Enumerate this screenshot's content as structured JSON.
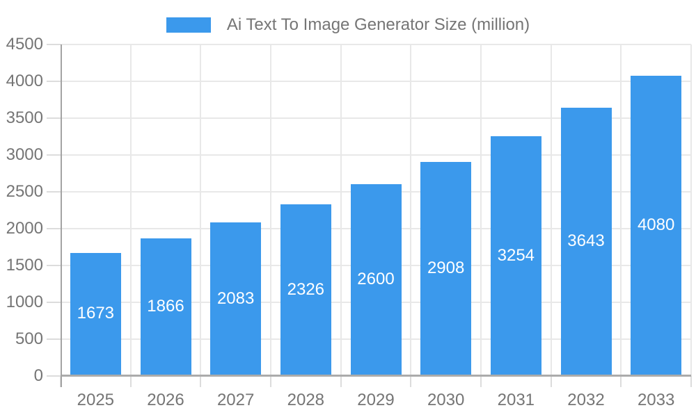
{
  "legend": {
    "label": "Ai Text To Image Generator Size (million)"
  },
  "chart_data": {
    "type": "bar",
    "title": "Ai Text To Image Generator Size (million)",
    "categories": [
      "2025",
      "2026",
      "2027",
      "2028",
      "2029",
      "2030",
      "2031",
      "2032",
      "2033"
    ],
    "series": [
      {
        "name": "Ai Text To Image Generator Size (million)",
        "values": [
          1673,
          1866,
          2083,
          2326,
          2600,
          2908,
          3254,
          3643,
          4080
        ]
      }
    ],
    "value_labels": {
      "position": "inside-center",
      "color": "#FFFFFF"
    },
    "xlabel": "",
    "ylabel": "",
    "ylim": [
      0,
      4500
    ],
    "yticks": [
      0,
      500,
      1000,
      1500,
      2000,
      2500,
      3000,
      3500,
      4000,
      4500
    ],
    "grid": true,
    "legend_position": "top"
  },
  "colors": {
    "bar": "#3B99EC",
    "text": "#757575",
    "value_label": "#FFFFFF",
    "grid": "#E8E8E8",
    "tick": "#DCDCDC",
    "axis": "#ABABAB",
    "background": "#FFFFFF"
  }
}
